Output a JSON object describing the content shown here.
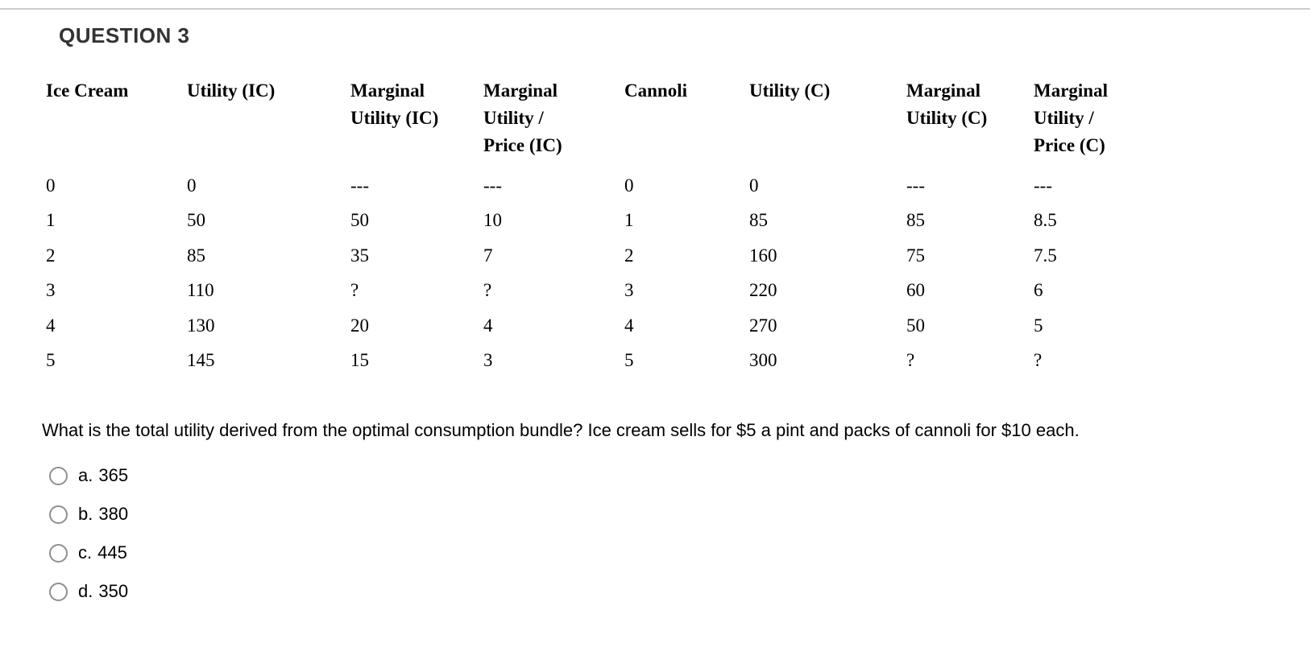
{
  "page": {
    "title": "QUESTION 3"
  },
  "colors": {
    "title": "#333333",
    "divider": "#cccccc",
    "radio_border": "#8f8f8f",
    "text": "#000000"
  },
  "table": {
    "headers": [
      {
        "lines": [
          "Ice Cream"
        ]
      },
      {
        "lines": [
          "Utility (IC)"
        ]
      },
      {
        "lines": [
          "Marginal",
          "Utility (IC)"
        ]
      },
      {
        "lines": [
          "Marginal",
          "Utility /",
          "Price (IC)"
        ]
      },
      {
        "lines": [
          "Cannoli"
        ]
      },
      {
        "lines": [
          "Utility (C)"
        ]
      },
      {
        "lines": [
          "Marginal",
          "Utility (C)"
        ]
      },
      {
        "lines": [
          "Marginal",
          "Utility /",
          "Price (C)"
        ]
      }
    ],
    "rows": [
      [
        "0",
        "0",
        "---",
        "---",
        "0",
        "0",
        "---",
        "---"
      ],
      [
        "1",
        "50",
        "50",
        "10",
        "1",
        "85",
        "85",
        "8.5"
      ],
      [
        "2",
        "85",
        "35",
        "7",
        "2",
        "160",
        "75",
        "7.5"
      ],
      [
        "3",
        "110",
        "?",
        "?",
        "3",
        "220",
        "60",
        "6"
      ],
      [
        "4",
        "130",
        "20",
        "4",
        "4",
        "270",
        "50",
        "5"
      ],
      [
        "5",
        "145",
        "15",
        "3",
        "5",
        "300",
        "?",
        "?"
      ]
    ]
  },
  "question": {
    "text": "What is the total utility derived from the optimal consumption bundle? Ice cream sells for $5 a pint and packs of cannoli for $10 each."
  },
  "options": [
    {
      "letter": "a.",
      "text": "365"
    },
    {
      "letter": "b.",
      "text": "380"
    },
    {
      "letter": "c.",
      "text": "445"
    },
    {
      "letter": "d.",
      "text": "350"
    }
  ]
}
